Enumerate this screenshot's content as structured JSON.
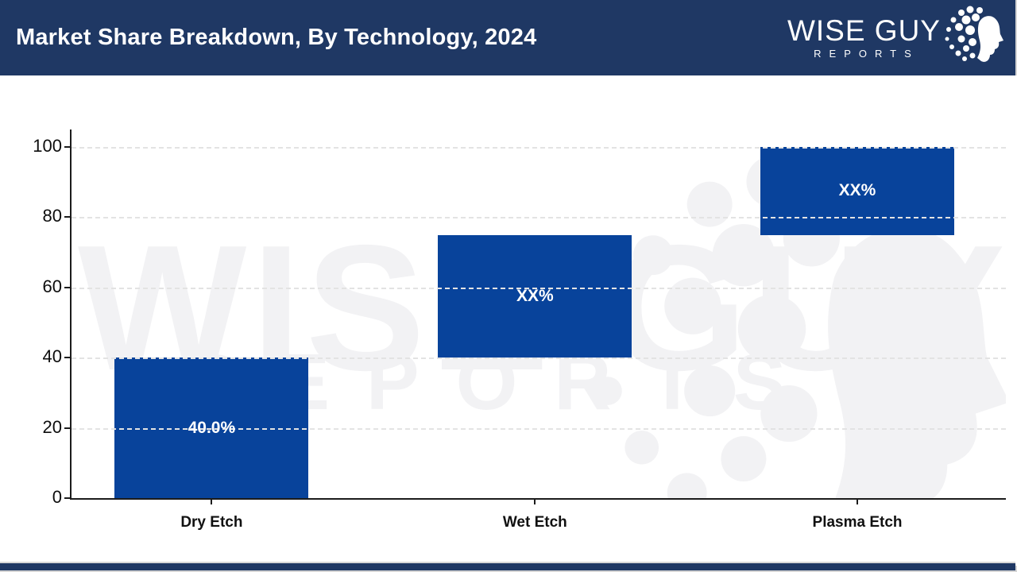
{
  "header": {
    "title": "Market Share Breakdown, By Technology, 2024",
    "logo": {
      "wordmark": "WISE GUY",
      "subtext": "REPORTS"
    }
  },
  "watermark": {
    "wordmark": "WISE GUY",
    "subtext": "REPORTS"
  },
  "chart_data": {
    "type": "bar",
    "variant": "waterfall",
    "title": "Market Share Breakdown, By Technology, 2024",
    "categories": [
      "Dry Etch",
      "Wet Etch",
      "Plasma Etch"
    ],
    "series": [
      {
        "name": "Market Share (%)",
        "segments": [
          {
            "category": "Dry Etch",
            "start": 0,
            "end": 40,
            "label": "40.0%"
          },
          {
            "category": "Wet Etch",
            "start": 40,
            "end": 75,
            "label": "XX%"
          },
          {
            "category": "Plasma Etch",
            "start": 75,
            "end": 100,
            "label": "XX%"
          }
        ]
      }
    ],
    "xlabel": "",
    "ylabel": "",
    "ylim": [
      0,
      105
    ],
    "yticks": [
      0,
      20,
      40,
      60,
      80,
      100
    ],
    "grid": {
      "horizontal": true,
      "style": "dashed"
    },
    "legend": null,
    "colors": {
      "bar": "#08439b",
      "bar_label": "#ffffff",
      "axis": "#1c1c1c",
      "grid": "#e3e3e3",
      "header_bg": "#1f3864",
      "watermark": "#f2f2f4"
    }
  }
}
